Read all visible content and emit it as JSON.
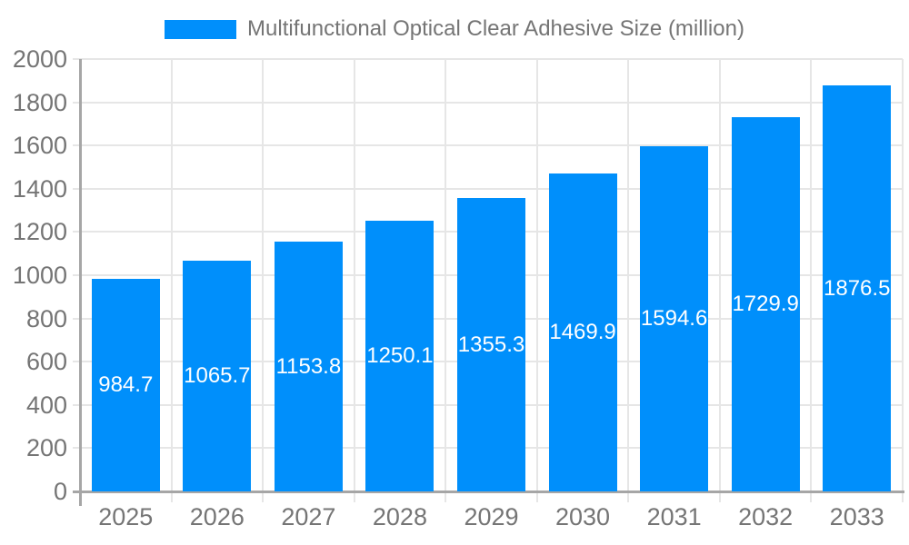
{
  "chart_data": {
    "type": "bar",
    "title": "Multifunctional Optical Clear Adhesive Size (million)",
    "categories": [
      "2025",
      "2026",
      "2027",
      "2028",
      "2029",
      "2030",
      "2031",
      "2032",
      "2033"
    ],
    "values": [
      984.7,
      1065.7,
      1153.8,
      1250.1,
      1355.3,
      1469.9,
      1594.6,
      1729.9,
      1876.5
    ],
    "value_labels": [
      "984.7",
      "1065.7",
      "1153.8",
      "1250.1",
      "1355.3",
      "1469.9",
      "1594.6",
      "1729.9",
      "1876.5"
    ],
    "xlabel": "",
    "ylabel": "",
    "ylim": [
      0,
      2000
    ],
    "ytick_step": 200,
    "ytick_labels": [
      "0",
      "200",
      "400",
      "600",
      "800",
      "1000",
      "1200",
      "1400",
      "1600",
      "1800",
      "2000"
    ],
    "grid": true,
    "legend_position": "top",
    "colors": {
      "bar": "#008FFB",
      "bar_value_text": "#ffffff",
      "axis_text": "#757575",
      "grid_line": "#e6e6e6",
      "axis_line": "#a6a6a6",
      "background": "#ffffff"
    }
  }
}
